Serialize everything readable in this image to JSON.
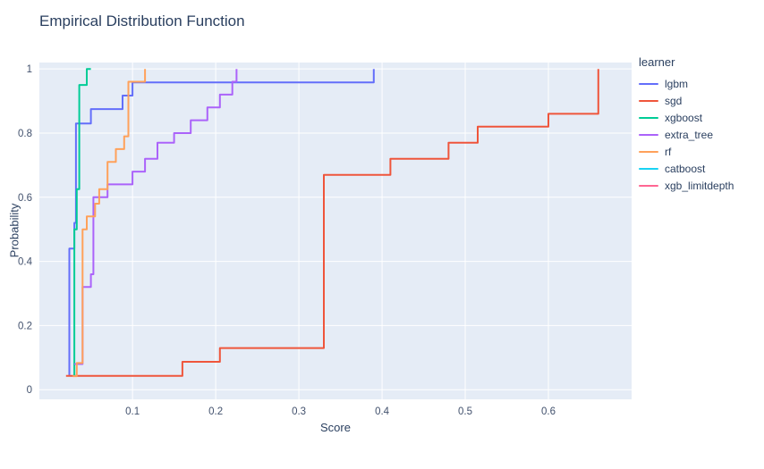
{
  "title": "Empirical Distribution Function",
  "axes": {
    "x_label": "Score",
    "y_label": "Probability"
  },
  "legend": {
    "title": "learner",
    "items": [
      {
        "label": "lgbm",
        "color": "#636EFA"
      },
      {
        "label": "sgd",
        "color": "#EF553B"
      },
      {
        "label": "xgboost",
        "color": "#00CC96"
      },
      {
        "label": "extra_tree",
        "color": "#AB63FA"
      },
      {
        "label": "rf",
        "color": "#FFA15A"
      },
      {
        "label": "catboost",
        "color": "#19D3F3"
      },
      {
        "label": "xgb_limitdepth",
        "color": "#FF6692"
      }
    ]
  },
  "colors": {
    "background": "#ffffff",
    "plot_background": "#E5ECF6",
    "grid": "#ffffff",
    "text": "#2a3f5f",
    "tick_text": "#42516d"
  },
  "chart_data": {
    "type": "line",
    "subtype": "ecdf-step",
    "title": "Empirical Distribution Function",
    "xlabel": "Score",
    "ylabel": "Probability",
    "xlim": [
      -0.012,
      0.7
    ],
    "ylim": [
      -0.03,
      1.02
    ],
    "x_ticks": [
      0.1,
      0.2,
      0.3,
      0.4,
      0.5,
      0.6
    ],
    "x_tick_labels": [
      "0.1",
      "0.2",
      "0.3",
      "0.4",
      "0.5",
      "0.6"
    ],
    "y_ticks": [
      0,
      0.2,
      0.4,
      0.6,
      0.8,
      1
    ],
    "y_tick_labels": [
      "0",
      "0.2",
      "0.4",
      "0.6",
      "0.8",
      "1"
    ],
    "grid": true,
    "legend_position": "right",
    "series": [
      {
        "name": "lgbm",
        "color": "#636EFA",
        "points": [
          [
            0.024,
            0.042
          ],
          [
            0.024,
            0.44
          ],
          [
            0.03,
            0.44
          ],
          [
            0.03,
            0.52
          ],
          [
            0.032,
            0.52
          ],
          [
            0.032,
            0.83
          ],
          [
            0.05,
            0.83
          ],
          [
            0.05,
            0.875
          ],
          [
            0.088,
            0.875
          ],
          [
            0.088,
            0.917
          ],
          [
            0.1,
            0.917
          ],
          [
            0.1,
            0.958
          ],
          [
            0.39,
            0.958
          ],
          [
            0.39,
            1.0
          ]
        ]
      },
      {
        "name": "sgd",
        "color": "#EF553B",
        "points": [
          [
            0.02,
            0.043
          ],
          [
            0.16,
            0.043
          ],
          [
            0.16,
            0.087
          ],
          [
            0.205,
            0.087
          ],
          [
            0.205,
            0.13
          ],
          [
            0.33,
            0.13
          ],
          [
            0.33,
            0.67
          ],
          [
            0.41,
            0.67
          ],
          [
            0.41,
            0.72
          ],
          [
            0.48,
            0.72
          ],
          [
            0.48,
            0.77
          ],
          [
            0.515,
            0.77
          ],
          [
            0.515,
            0.82
          ],
          [
            0.6,
            0.82
          ],
          [
            0.6,
            0.86
          ],
          [
            0.66,
            0.86
          ],
          [
            0.66,
            1.0
          ]
        ]
      },
      {
        "name": "xgboost",
        "color": "#00CC96",
        "points": [
          [
            0.03,
            0.042
          ],
          [
            0.03,
            0.5
          ],
          [
            0.033,
            0.5
          ],
          [
            0.033,
            0.625
          ],
          [
            0.036,
            0.625
          ],
          [
            0.036,
            0.95
          ],
          [
            0.045,
            0.95
          ],
          [
            0.045,
            1.0
          ],
          [
            0.05,
            1.0
          ]
        ]
      },
      {
        "name": "extra_tree",
        "color": "#AB63FA",
        "points": [
          [
            0.03,
            0.08
          ],
          [
            0.04,
            0.08
          ],
          [
            0.04,
            0.32
          ],
          [
            0.05,
            0.32
          ],
          [
            0.05,
            0.36
          ],
          [
            0.053,
            0.36
          ],
          [
            0.053,
            0.6
          ],
          [
            0.07,
            0.6
          ],
          [
            0.07,
            0.64
          ],
          [
            0.1,
            0.64
          ],
          [
            0.1,
            0.68
          ],
          [
            0.115,
            0.68
          ],
          [
            0.115,
            0.72
          ],
          [
            0.13,
            0.72
          ],
          [
            0.13,
            0.77
          ],
          [
            0.15,
            0.77
          ],
          [
            0.15,
            0.8
          ],
          [
            0.17,
            0.8
          ],
          [
            0.17,
            0.84
          ],
          [
            0.19,
            0.84
          ],
          [
            0.19,
            0.88
          ],
          [
            0.205,
            0.88
          ],
          [
            0.205,
            0.92
          ],
          [
            0.22,
            0.92
          ],
          [
            0.22,
            0.96
          ],
          [
            0.225,
            0.96
          ],
          [
            0.225,
            1.0
          ]
        ]
      },
      {
        "name": "rf",
        "color": "#FFA15A",
        "points": [
          [
            0.028,
            0.042
          ],
          [
            0.033,
            0.042
          ],
          [
            0.033,
            0.083
          ],
          [
            0.04,
            0.083
          ],
          [
            0.04,
            0.5
          ],
          [
            0.045,
            0.5
          ],
          [
            0.045,
            0.54
          ],
          [
            0.055,
            0.54
          ],
          [
            0.055,
            0.58
          ],
          [
            0.06,
            0.58
          ],
          [
            0.06,
            0.625
          ],
          [
            0.07,
            0.625
          ],
          [
            0.07,
            0.71
          ],
          [
            0.08,
            0.71
          ],
          [
            0.08,
            0.75
          ],
          [
            0.09,
            0.75
          ],
          [
            0.09,
            0.79
          ],
          [
            0.095,
            0.79
          ],
          [
            0.095,
            0.96
          ],
          [
            0.115,
            0.96
          ],
          [
            0.115,
            1.0
          ]
        ]
      },
      {
        "name": "catboost",
        "color": "#19D3F3",
        "visible": false,
        "points": []
      },
      {
        "name": "xgb_limitdepth",
        "color": "#FF6692",
        "visible": false,
        "points": []
      }
    ]
  }
}
